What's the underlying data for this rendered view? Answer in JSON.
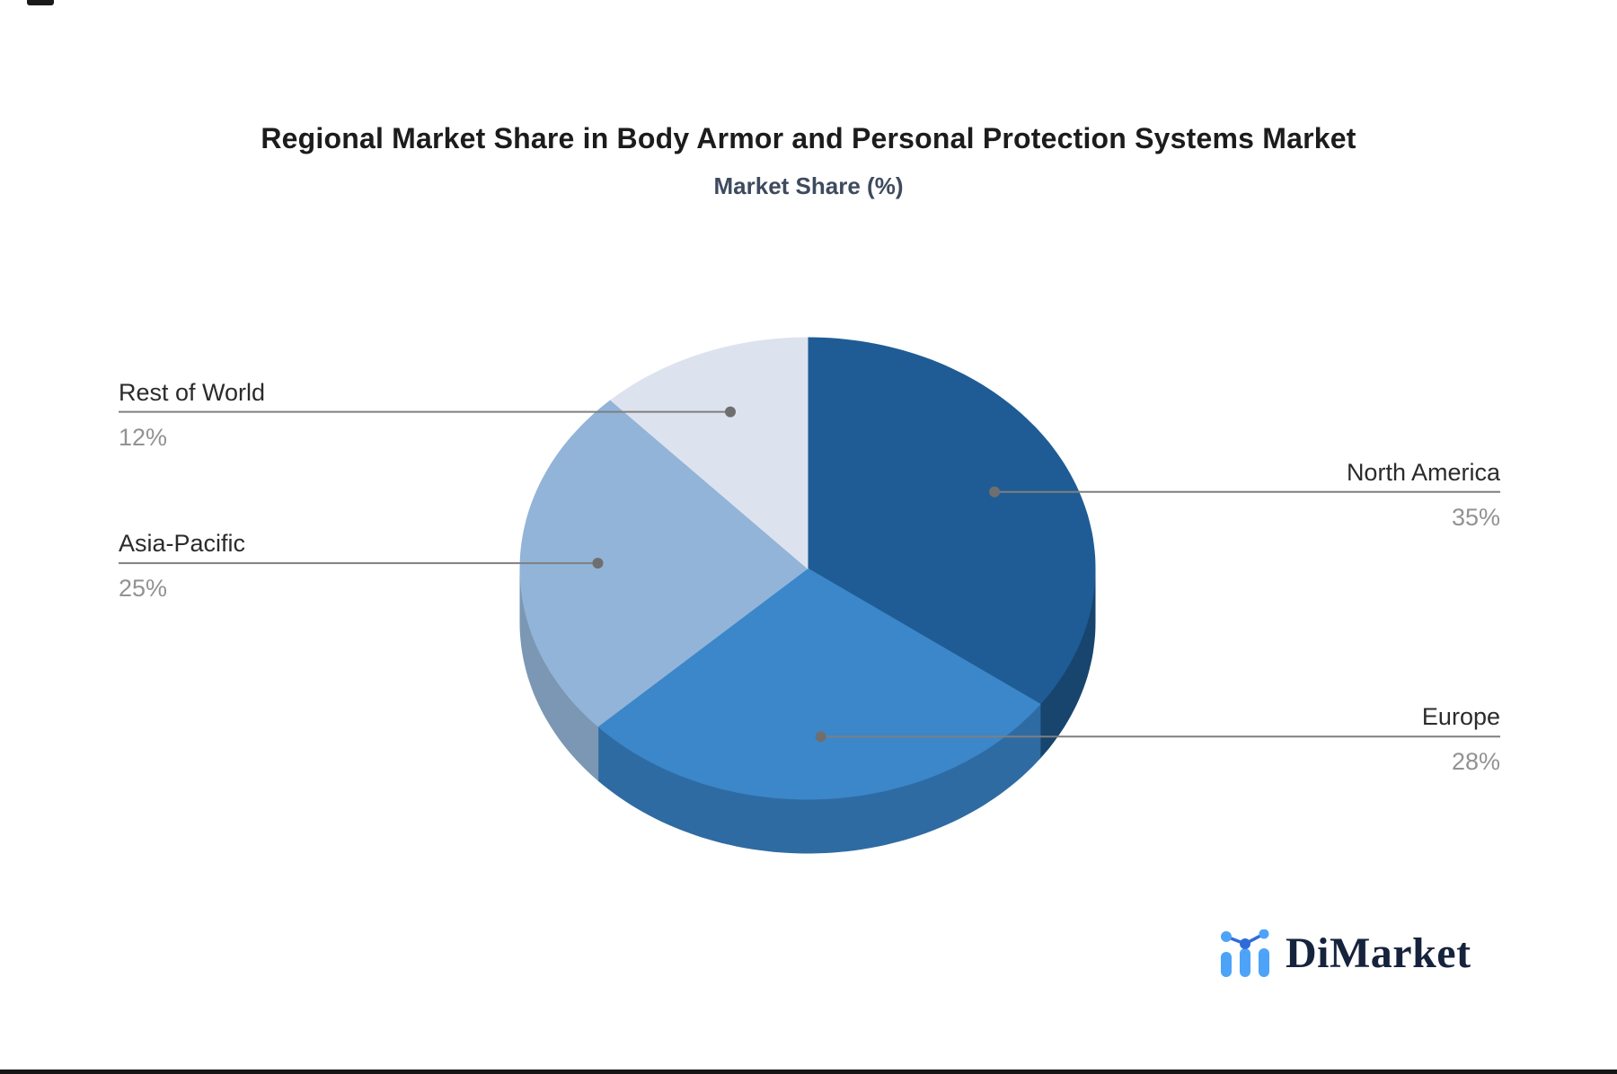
{
  "chart_data": {
    "type": "pie",
    "title": "Regional Market Share in Body Armor and Personal Protection Systems Market",
    "subtitle": "Market Share (%)",
    "unit": "%",
    "style": "3d",
    "direction": "clockwise",
    "start_angle_deg": 0,
    "legend_position": "callout-labels",
    "slices": [
      {
        "label": "North America",
        "value": 35,
        "value_text": "35%",
        "color": "#1f5c95",
        "side_color": "#17456e",
        "callout_side": "right"
      },
      {
        "label": "Europe",
        "value": 28,
        "value_text": "28%",
        "color": "#3b87c9",
        "side_color": "#2f6ba3",
        "callout_side": "right"
      },
      {
        "label": "Asia-Pacific",
        "value": 25,
        "value_text": "25%",
        "color": "#92b4d8",
        "side_color": "#7b97b4",
        "callout_side": "left"
      },
      {
        "label": "Rest of World",
        "value": 12,
        "value_text": "12%",
        "color": "#dde3ee",
        "side_color": "#c2cbdc",
        "callout_side": "left"
      }
    ],
    "callout_line_color": "#7f7f7f",
    "callout_dot_color": "#6f6f6f",
    "label_color": "#2b2b2b",
    "value_color": "#929292"
  },
  "logo": {
    "text": "DiMarket",
    "icon": "bar-chart-logo-icon",
    "bar_color": "#4da3f7",
    "accent_color": "#2f6bd8",
    "text_color": "#16233c"
  }
}
